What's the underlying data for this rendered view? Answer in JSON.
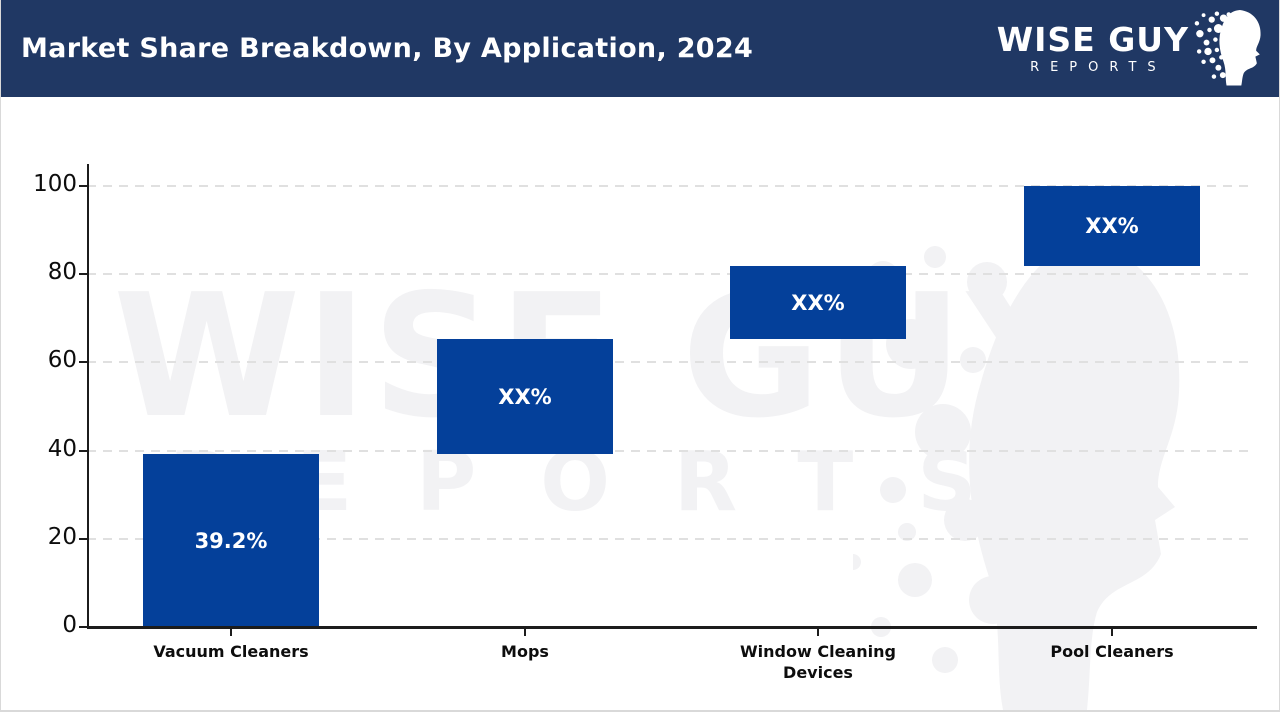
{
  "header": {
    "title": "Market Share Breakdown, By Application, 2024",
    "bg_color": "#203864",
    "text_color": "#ffffff",
    "logo": {
      "line1": "WISE GUY",
      "line2": "REPORTS"
    }
  },
  "watermark": {
    "line1": "WISE GUY",
    "line2": "REPORTS"
  },
  "chart_data": {
    "type": "bar",
    "variant": "waterfall",
    "title": "Market Share Breakdown, By Application, 2024",
    "xlabel": "",
    "ylabel": "",
    "ylim": [
      0,
      104
    ],
    "yticks": [
      0,
      20,
      40,
      60,
      80,
      100
    ],
    "grid": "horizontal-dashed",
    "gridline_color": "#e0e0e0",
    "axis_color": "#1c1c1c",
    "bar_color": "#04409A",
    "bar_label_color": "#ffffff",
    "categories": [
      "Vacuum Cleaners",
      "Mops",
      "Window Cleaning Devices",
      "Pool Cleaners"
    ],
    "segments": [
      {
        "category": "Vacuum Cleaners",
        "start": 0,
        "end": 39.2,
        "label": "39.2%"
      },
      {
        "category": "Mops",
        "start": 39.2,
        "end": 65.2,
        "label": "XX%"
      },
      {
        "category": "Window Cleaning Devices",
        "start": 65.2,
        "end": 81.8,
        "label": "XX%"
      },
      {
        "category": "Pool Cleaners",
        "start": 81.8,
        "end": 100,
        "label": "XX%"
      }
    ]
  }
}
